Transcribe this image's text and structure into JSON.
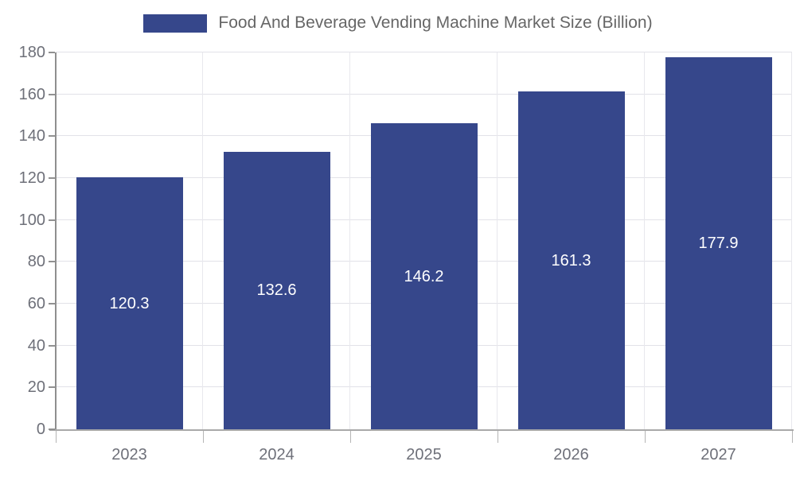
{
  "legend": {
    "label": "Food And Beverage Vending Machine Market Size (Billion)"
  },
  "chart_data": {
    "type": "bar",
    "title": "Food And Beverage Vending Machine Market Size (Billion)",
    "categories": [
      "2023",
      "2024",
      "2025",
      "2026",
      "2027"
    ],
    "values": [
      120.3,
      132.6,
      146.2,
      161.3,
      177.9
    ],
    "value_labels": [
      "120.3",
      "132.6",
      "146.2",
      "161.3",
      "177.9"
    ],
    "xlabel": "",
    "ylabel": "",
    "ylim": [
      0,
      180
    ],
    "yticks": [
      0,
      20,
      40,
      60,
      80,
      100,
      120,
      140,
      160,
      180
    ],
    "grid": true,
    "legend_position": "top",
    "bar_color": "#36478B",
    "value_label_color": "#ffffff",
    "axis_label_color": "#6E7079"
  }
}
